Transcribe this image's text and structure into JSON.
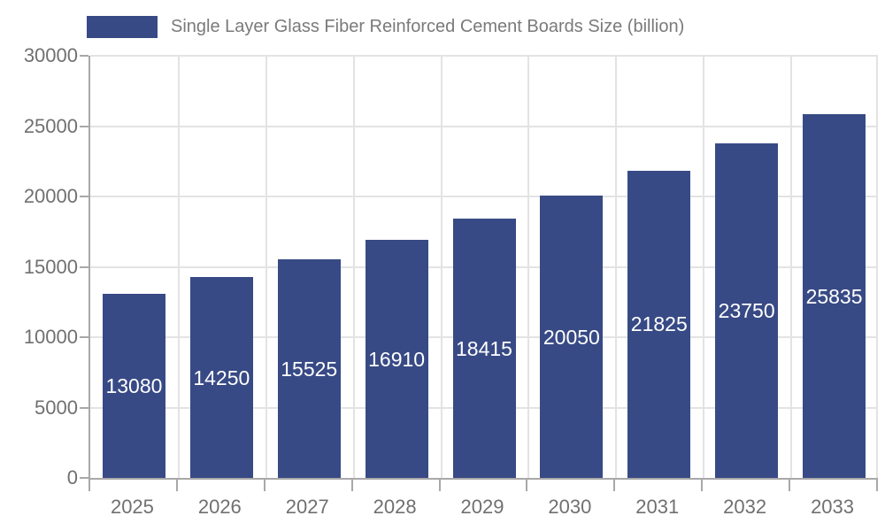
{
  "chart_data": {
    "type": "bar",
    "title": "",
    "legend": [
      "Single Layer Glass Fiber Reinforced Cement Boards Size (billion)"
    ],
    "legend_position": "top-left",
    "categories": [
      "2025",
      "2026",
      "2027",
      "2028",
      "2029",
      "2030",
      "2031",
      "2032",
      "2033"
    ],
    "values": [
      13080,
      14250,
      15525,
      16910,
      18415,
      20050,
      21825,
      23750,
      25835
    ],
    "bar_value_labels": [
      "13080",
      "14250",
      "15525",
      "16910",
      "18415",
      "20050",
      "21825",
      "23750",
      "25835"
    ],
    "xlabel": "",
    "ylabel": "",
    "ylim": [
      0,
      30000
    ],
    "yticks": [
      0,
      5000,
      10000,
      15000,
      20000,
      25000,
      30000
    ],
    "ytick_labels": [
      "0",
      "5000",
      "10000",
      "15000",
      "20000",
      "25000",
      "30000"
    ],
    "grid": true,
    "colors": {
      "bar": "#384a85",
      "legend_text": "#7a7a7a",
      "axis_text": "#707070",
      "grid_line": "#e3e3e3",
      "axis_line": "#a8a8a8",
      "value_label": "#ffffff",
      "background": "#ffffff"
    }
  }
}
